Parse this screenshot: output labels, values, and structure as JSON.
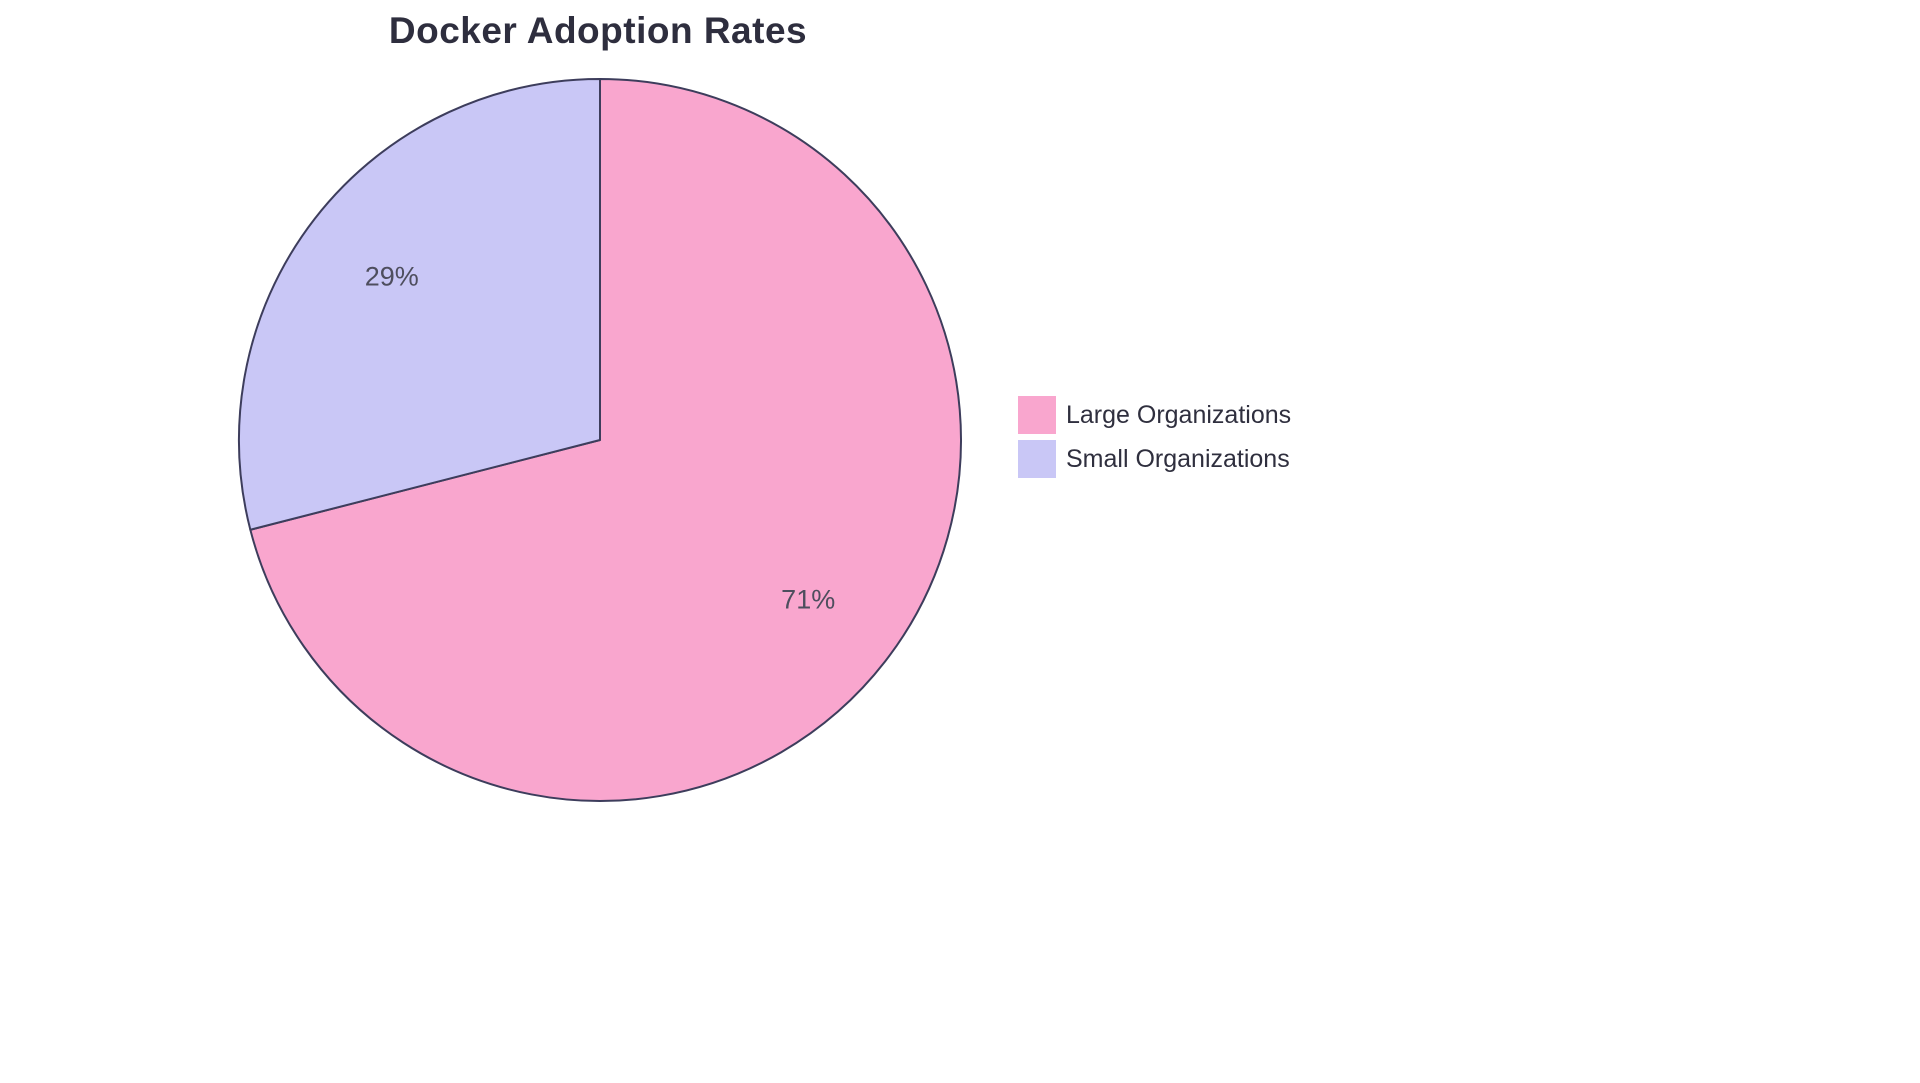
{
  "chart_data": {
    "type": "pie",
    "title": "Docker Adoption Rates",
    "slices": [
      {
        "label": "Large Organizations",
        "value": 71,
        "text": "71%",
        "color": "#F9A6CE"
      },
      {
        "label": "Small Organizations",
        "value": 29,
        "text": "29%",
        "color": "#C9C7F6"
      }
    ],
    "start_angle_deg": 0,
    "direction": "clockwise",
    "stroke_color": "#3D3D5C",
    "label_color": "#4E4E5E",
    "legend_position": "right",
    "background": "#FFFFFF"
  }
}
